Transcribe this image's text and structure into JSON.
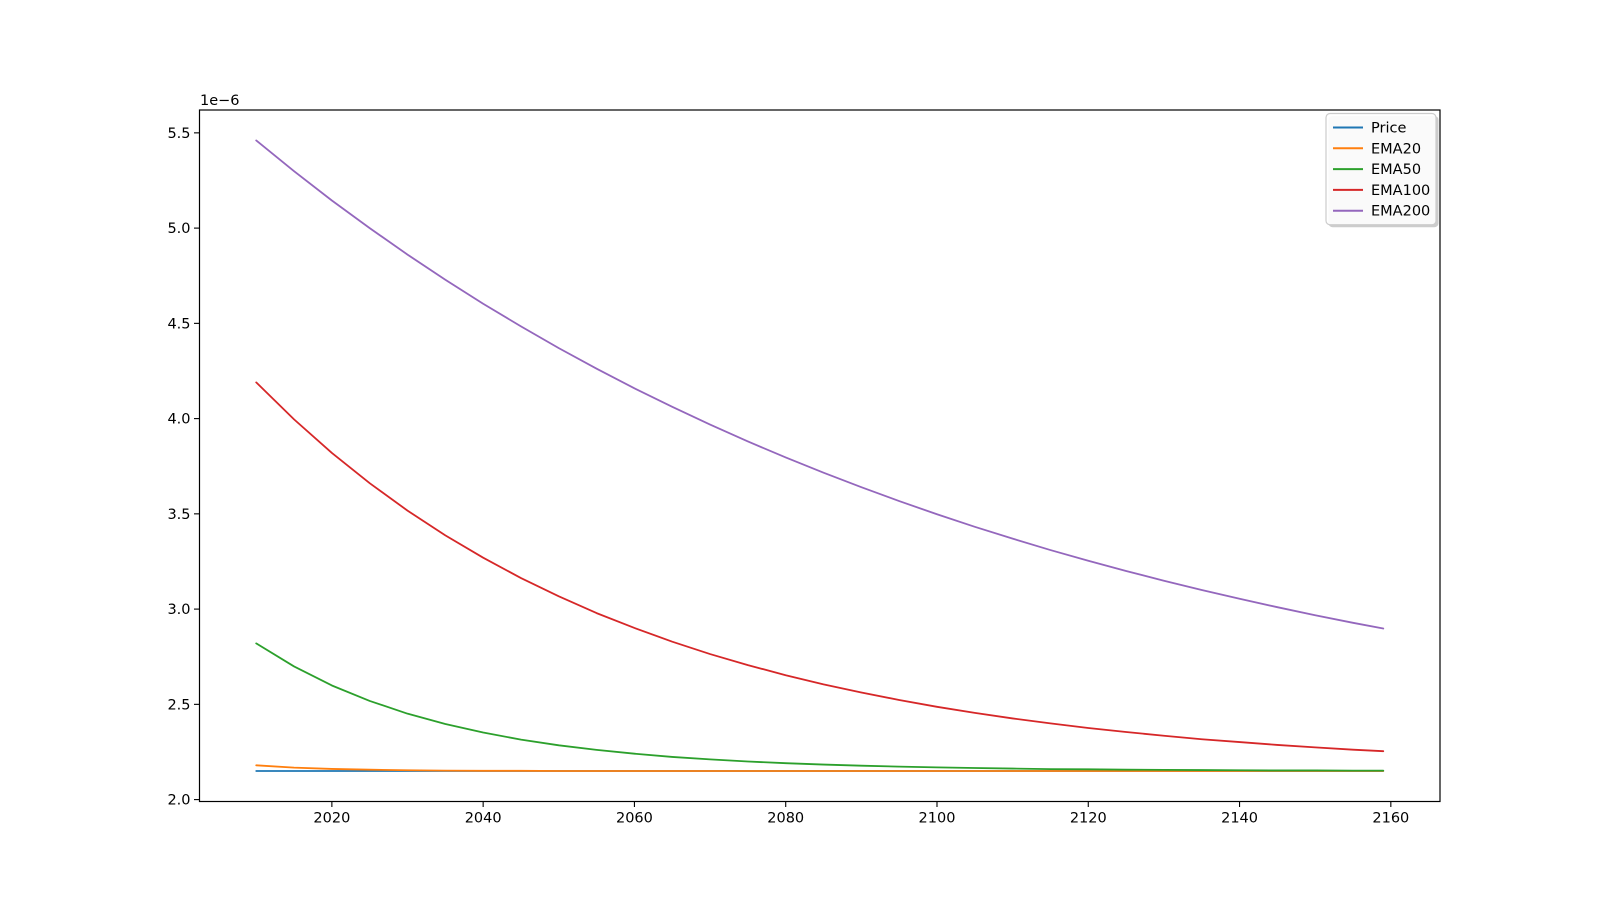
{
  "chart_data": {
    "type": "line",
    "title": "",
    "xlabel": "",
    "ylabel": "",
    "offset_label": "1e−6",
    "y_unit": "1e-6",
    "grid": false,
    "legend_position": "upper right",
    "xlim": [
      2002.5,
      2166.5
    ],
    "ylim": [
      1.99,
      5.62
    ],
    "xticks": [
      2020,
      2040,
      2060,
      2080,
      2100,
      2120,
      2140,
      2160
    ],
    "xtick_labels": [
      "2020",
      "2040",
      "2060",
      "2080",
      "2100",
      "2120",
      "2140",
      "2160"
    ],
    "yticks": [
      2.0,
      2.5,
      3.0,
      3.5,
      4.0,
      4.5,
      5.0,
      5.5
    ],
    "ytick_labels": [
      "2.0",
      "2.5",
      "3.0",
      "3.5",
      "4.0",
      "4.5",
      "5.0",
      "5.5"
    ],
    "x": [
      2010,
      2015,
      2020,
      2025,
      2030,
      2035,
      2040,
      2045,
      2050,
      2055,
      2060,
      2065,
      2070,
      2075,
      2080,
      2085,
      2090,
      2095,
      2100,
      2105,
      2110,
      2115,
      2120,
      2125,
      2130,
      2135,
      2140,
      2145,
      2150,
      2155,
      2159
    ],
    "series": [
      {
        "name": "Price",
        "color": "#1f77b4",
        "values": [
          2.15,
          2.15,
          2.15,
          2.15,
          2.15,
          2.15,
          2.15,
          2.15,
          2.15,
          2.15,
          2.15,
          2.15,
          2.15,
          2.15,
          2.15,
          2.15,
          2.15,
          2.15,
          2.15,
          2.15,
          2.15,
          2.15,
          2.15,
          2.15,
          2.15,
          2.15,
          2.15,
          2.15,
          2.15,
          2.15,
          2.15
        ]
      },
      {
        "name": "EMA20",
        "color": "#ff7f0e",
        "values": [
          2.18,
          2.168,
          2.161,
          2.157,
          2.154,
          2.152,
          2.151,
          2.151,
          2.15,
          2.15,
          2.15,
          2.15,
          2.15,
          2.15,
          2.15,
          2.15,
          2.15,
          2.15,
          2.15,
          2.15,
          2.15,
          2.15,
          2.15,
          2.15,
          2.15,
          2.15,
          2.15,
          2.15,
          2.15,
          2.15,
          2.15
        ]
      },
      {
        "name": "EMA50",
        "color": "#2ca02c",
        "values": [
          2.82,
          2.699,
          2.599,
          2.518,
          2.451,
          2.397,
          2.352,
          2.315,
          2.285,
          2.261,
          2.241,
          2.224,
          2.211,
          2.2,
          2.191,
          2.184,
          2.178,
          2.173,
          2.169,
          2.166,
          2.163,
          2.16,
          2.159,
          2.157,
          2.156,
          2.155,
          2.154,
          2.153,
          2.153,
          2.152,
          2.152
        ]
      },
      {
        "name": "EMA100",
        "color": "#d62728",
        "values": [
          4.19,
          3.996,
          3.82,
          3.661,
          3.517,
          3.387,
          3.27,
          3.163,
          3.067,
          2.979,
          2.901,
          2.829,
          2.764,
          2.706,
          2.653,
          2.605,
          2.562,
          2.523,
          2.487,
          2.455,
          2.426,
          2.4,
          2.376,
          2.355,
          2.335,
          2.317,
          2.302,
          2.287,
          2.274,
          2.262,
          2.254
        ]
      },
      {
        "name": "EMA200",
        "color": "#9467bd",
        "values": [
          5.46,
          5.299,
          5.145,
          5.0,
          4.861,
          4.729,
          4.603,
          4.484,
          4.37,
          4.262,
          4.159,
          4.062,
          3.969,
          3.88,
          3.796,
          3.716,
          3.64,
          3.567,
          3.498,
          3.432,
          3.37,
          3.31,
          3.254,
          3.2,
          3.149,
          3.1,
          3.054,
          3.01,
          2.968,
          2.928,
          2.898
        ]
      }
    ],
    "legend": {
      "labels": [
        "Price",
        "EMA20",
        "EMA50",
        "EMA100",
        "EMA200"
      ],
      "border_color": "#cccccc",
      "background": "#ffffff"
    },
    "axis_color": "#000000",
    "tick_label_color": "#000000"
  }
}
